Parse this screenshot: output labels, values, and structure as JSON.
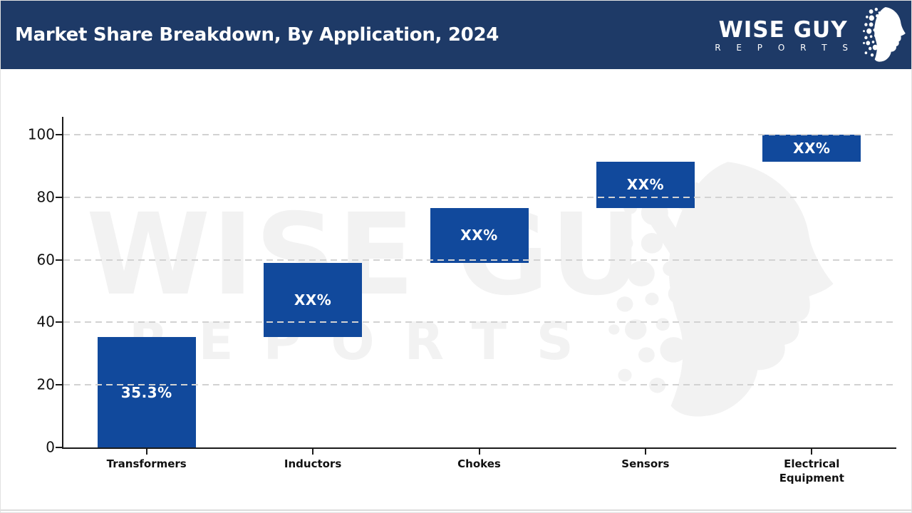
{
  "header": {
    "title": "Market Share Breakdown, By Application, 2024",
    "logo": {
      "main": "WISE GUY",
      "sub": "R E P O R T S"
    }
  },
  "watermark": {
    "main": "WISE GUY",
    "sub": "REPORTS"
  },
  "colors": {
    "header_bg": "#1e3a67",
    "bar_blue": "#11499c",
    "grid_gray": "#d2d2d2",
    "axis_black": "#1a1a1a",
    "watermark_gray": "#f2f2f2"
  },
  "chart_data": {
    "type": "bar",
    "subtype": "waterfall",
    "title": "Market Share Breakdown, By Application, 2024",
    "xlabel": "",
    "ylabel": "",
    "ylim": [
      0,
      105.7
    ],
    "yticks": [
      0,
      20,
      40,
      60,
      80,
      100
    ],
    "grid": "horizontal dashed, drawn above bars",
    "legend": "none",
    "categories": [
      "Transformers",
      "Inductors",
      "Chokes",
      "Sensors",
      "Electrical\nEquipment"
    ],
    "bars": [
      {
        "category": "Transformers",
        "start": 0,
        "end": 35.3,
        "label": "35.3%"
      },
      {
        "category": "Inductors",
        "start": 35.3,
        "end": 59.0,
        "label": "XX%"
      },
      {
        "category": "Chokes",
        "start": 59.0,
        "end": 76.6,
        "label": "XX%"
      },
      {
        "category": "Sensors",
        "start": 76.6,
        "end": 91.4,
        "label": "XX%"
      },
      {
        "category": "Electrical Equipment",
        "start": 91.4,
        "end": 100.0,
        "label": "XX%"
      }
    ]
  }
}
